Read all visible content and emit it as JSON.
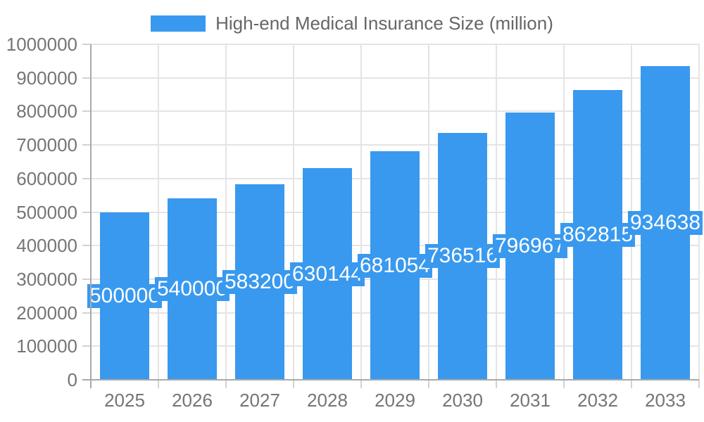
{
  "chart": {
    "legend_label": "High-end Medical Insurance Size (million)",
    "colors": {
      "bar": "#3999EE",
      "bar_label_text": "#FFFFFF",
      "axis_text": "#757575",
      "title_text": "#666666",
      "gridline": "#E4E4E4",
      "axis_line": "#A9A9A9",
      "background": "#FFFFFF"
    }
  },
  "chart_data": {
    "type": "bar",
    "title": "High-end Medical Insurance Size (million)",
    "legend_position": "top",
    "grid": "on",
    "categories": [
      "2025",
      "2026",
      "2027",
      "2028",
      "2029",
      "2030",
      "2031",
      "2032",
      "2033"
    ],
    "series": [
      {
        "name": "High-end Medical Insurance Size (million)",
        "values": [
          500000,
          540000,
          583200,
          630144,
          681054,
          736516,
          796967,
          862815,
          934638
        ]
      }
    ],
    "bar_value_labels": [
      "500000",
      "540000",
      "583200",
      "630144",
      "681054",
      "736516",
      "796967",
      "862815",
      "934638"
    ],
    "xlabel": "",
    "ylabel": "",
    "ylim": [
      0,
      1000000
    ],
    "ytick_step": 100000,
    "yticks": [
      0,
      100000,
      200000,
      300000,
      400000,
      500000,
      600000,
      700000,
      800000,
      900000,
      1000000
    ]
  }
}
